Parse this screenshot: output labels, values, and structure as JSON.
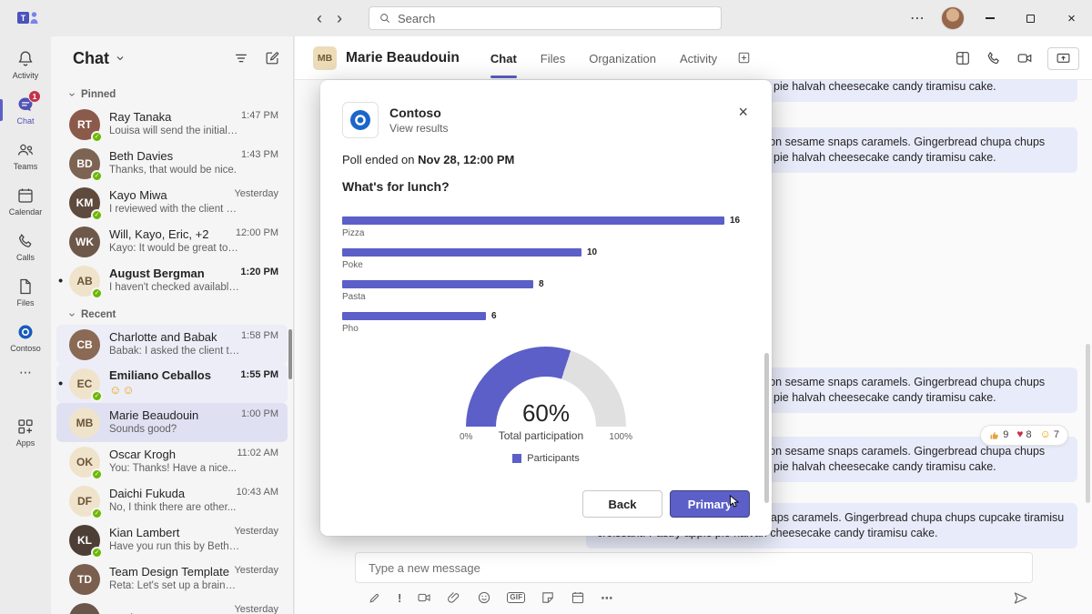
{
  "glyphs": {
    "more": "⋯",
    "close": "×",
    "back": "‹",
    "forward": "›",
    "unread_dot": "•",
    "importance": "!",
    "gif": "GIF",
    "heart": "♥",
    "smile": "☺",
    "check": "✓"
  },
  "colors": {
    "accent": "#5b5fc7",
    "accent_dark": "#4f52b2",
    "bubble": "#e8ebfa",
    "badge_red": "#c4314b",
    "presence_green": "#6bb700",
    "gauge_track": "#e0e0e0"
  },
  "titlebar": {
    "search_placeholder": "Search"
  },
  "rail": {
    "items": [
      {
        "id": "activity",
        "label": "Activity"
      },
      {
        "id": "chat",
        "label": "Chat",
        "active": true,
        "badge": "1"
      },
      {
        "id": "teams",
        "label": "Teams"
      },
      {
        "id": "calendar",
        "label": "Calendar"
      },
      {
        "id": "calls",
        "label": "Calls"
      },
      {
        "id": "files",
        "label": "Files"
      },
      {
        "id": "contoso",
        "label": "Contoso"
      },
      {
        "id": "more",
        "label": ""
      },
      {
        "id": "apps",
        "label": "Apps"
      }
    ]
  },
  "sidebar": {
    "title": "Chat",
    "sections": [
      {
        "label": "Pinned",
        "items": [
          {
            "initials": "RT",
            "avatar_color": "#8c5a4a",
            "name": "Ray Tanaka",
            "preview": "Louisa will send the initial list of...",
            "time": "1:47 PM",
            "presence": true
          },
          {
            "initials": "BD",
            "avatar_color": "#7d6452",
            "name": "Beth Davies",
            "preview": "Thanks, that would be nice.",
            "time": "1:43 PM",
            "presence": true
          },
          {
            "initials": "KM",
            "avatar_color": "#5f4a3e",
            "name": "Kayo Miwa",
            "preview": "I reviewed with the client on...",
            "time": "Yesterday",
            "presence": true
          },
          {
            "initials": "WK",
            "avatar_color": "#6e584a",
            "name": "Will, Kayo, Eric, +2",
            "preview": "Kayo: It would be great to sync...",
            "time": "12:00 PM"
          },
          {
            "initials": "AB",
            "avatar_color": "#efe3cc",
            "avatar_text": "#6b5435",
            "name": "August Bergman",
            "preview": "I haven't checked available time...",
            "time": "1:20 PM",
            "presence": true,
            "unread": true
          }
        ]
      },
      {
        "label": "Recent",
        "items": [
          {
            "initials": "CB",
            "avatar_color": "#8a6a55",
            "name": "Charlotte and Babak",
            "preview": "Babak: I asked the client to send...",
            "time": "1:58 PM",
            "highlight": true
          },
          {
            "initials": "EC",
            "avatar_color": "#efe3cc",
            "avatar_text": "#6b5435",
            "name": "Emiliano Ceballos",
            "preview": "😄😄",
            "time": "1:55 PM",
            "presence": true,
            "unread": true,
            "highlight": true
          },
          {
            "initials": "MB",
            "avatar_color": "#efe3cc",
            "avatar_text": "#6b5435",
            "name": "Marie Beaudouin",
            "preview": "Sounds good?",
            "time": "1:00 PM",
            "selected": true
          },
          {
            "initials": "OK",
            "avatar_color": "#efe3cc",
            "avatar_text": "#6b5435",
            "name": "Oscar Krogh",
            "preview": "You: Thanks! Have a nice...",
            "time": "11:02 AM",
            "presence": true
          },
          {
            "initials": "DF",
            "avatar_color": "#efe3cc",
            "avatar_text": "#6b5435",
            "name": "Daichi Fukuda",
            "preview": "No, I think there are other...",
            "time": "10:43 AM",
            "presence": true
          },
          {
            "initials": "KL",
            "avatar_color": "#4e3f36",
            "name": "Kian Lambert",
            "preview": "Have you run this by Beth? Mak...",
            "time": "Yesterday",
            "presence": true
          },
          {
            "initials": "TD",
            "avatar_color": "#7a5f4e",
            "name": "Team Design Template",
            "preview": "Reta: Let's set up a brainstorm...",
            "time": "Yesterday"
          },
          {
            "initials": "RV",
            "avatar_color": "#6a564a",
            "name": "Reviewers",
            "preview": "",
            "time": "Yesterday"
          }
        ]
      }
    ]
  },
  "chat_header": {
    "avatar_initials": "MB",
    "name": "Marie Beaudouin",
    "tabs": [
      {
        "label": "Chat",
        "active": true
      },
      {
        "label": "Files"
      },
      {
        "label": "Organization"
      },
      {
        "label": "Activity"
      }
    ]
  },
  "messages": [
    {
      "text": "Bonbon sesame snaps caramels. Gingerbread chupa chups apple pie halvah cheesecake candy tiramisu cake."
    },
    {
      "text": "Bonbon sesame snaps caramels. Gingerbread chupa chups apple pie halvah cheesecake candy tiramisu cake."
    },
    {
      "text": "Bonbon sesame snaps caramels. Gingerbread chupa chups apple pie halvah cheesecake candy tiramisu cake."
    },
    {
      "text": "Bonbon sesame snaps caramels. Gingerbread chupa chups apple pie halvah cheesecake candy tiramisu cake.",
      "reactions": [
        {
          "icon": "thumbs-up",
          "count": 9
        },
        {
          "icon": "heart",
          "count": 8
        },
        {
          "icon": "laughing",
          "count": 7
        }
      ]
    },
    {
      "text": "Soufflé jujubes bonbon sesame snaps caramels. Gingerbread chupa chups cupcake tiramisu croissant. Pastry apple pie halvah cheesecake candy tiramisu cake."
    }
  ],
  "modal": {
    "app_name": "Contoso",
    "subtitle": "View results",
    "status_prefix": "Poll ended on ",
    "status_bold": "Nov 28, 12:00 PM",
    "question": "What's for lunch?",
    "back_label": "Back",
    "primary_label": "Primary",
    "chart_data": [
      {
        "type": "bar",
        "orientation": "horizontal",
        "title": "What's for lunch?",
        "categories": [
          "Pizza",
          "Poke",
          "Pasta",
          "Pho"
        ],
        "values": [
          16,
          10,
          8,
          6
        ],
        "xlim": [
          0,
          16
        ],
        "bar_color": "#5b5fc7",
        "value_labels": "end"
      },
      {
        "type": "pie",
        "style": "half-donut-gauge",
        "value_percent": 60,
        "center_label": "60%",
        "caption": "Total participation",
        "min_label": "0%",
        "max_label": "100%",
        "track_color": "#e0e0e0",
        "legend": [
          {
            "label": "Participants",
            "color": "#5b5fc7"
          }
        ]
      }
    ]
  },
  "compose": {
    "placeholder": "Type a new message",
    "tools": [
      {
        "id": "format"
      },
      {
        "id": "importance"
      },
      {
        "id": "video-clip"
      },
      {
        "id": "attach"
      },
      {
        "id": "emoji"
      },
      {
        "id": "gif"
      },
      {
        "id": "sticker"
      },
      {
        "id": "schedule"
      },
      {
        "id": "more"
      }
    ]
  }
}
